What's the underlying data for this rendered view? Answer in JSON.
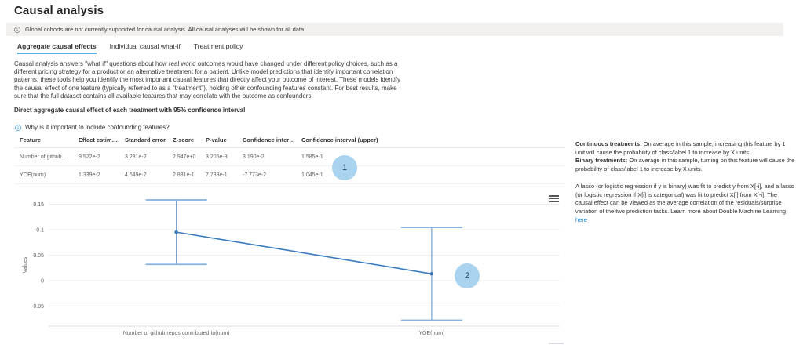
{
  "page": {
    "title": "Causal analysis"
  },
  "banner": {
    "icon": "info-icon",
    "text": "Global cohorts are not currently supported for causal analysis. All causal analyses will be shown for all data."
  },
  "tabs": [
    {
      "label": "Aggregate causal effects",
      "active": true
    },
    {
      "label": "Individual causal what-if",
      "active": false
    },
    {
      "label": "Treatment policy",
      "active": false
    }
  ],
  "description": "Causal analysis answers \"what if\" questions about how real world outcomes would have changed under different policy choices, such as a different pricing strategy for a product or an alternative treatment for a patient. Unlike model predictions that identify important correlation patterns, these tools help you identify the most important causal features that directly affect your outcome of interest. These models identify the causal effect of one feature (typically referred to as a \"treatment\"), holding other confounding features constant. For best results, make sure that the full dataset contains all available features that may correlate with the outcome as confounders.",
  "subtitle": "Direct aggregate causal effect of each treatment with 95% confidence interval",
  "confounding_link": "Why is it important to include confounding features?",
  "table": {
    "columns": [
      "Feature",
      "Effect estimate",
      "Standard error",
      "Z-score",
      "P-value",
      "Confidence interv...",
      "Confidence interval (upper)"
    ],
    "rows": [
      [
        "Number of github ...",
        "9.522e-2",
        "3.231e-2",
        "2.947e+0",
        "3.205e-3",
        "3.190e-2",
        "1.585e-1"
      ],
      [
        "YOE(num)",
        "1.339e-2",
        "4.649e-2",
        "2.881e-1",
        "7.733e-1",
        "-7.773e-2",
        "1.045e-1"
      ]
    ]
  },
  "callouts": [
    {
      "label": "1"
    },
    {
      "label": "2"
    }
  ],
  "chart_data": {
    "type": "scatter",
    "title": "",
    "categories": [
      "Number of github repos contributed to(num)",
      "YOE(num)"
    ],
    "values": [
      0.09522,
      0.01339
    ],
    "error_low": [
      0.0319,
      -0.07773
    ],
    "error_high": [
      0.1585,
      0.1045
    ],
    "ylabel": "Values",
    "xlabel": "",
    "yticks": [
      0.15,
      0.1,
      0.05,
      0,
      -0.05
    ],
    "ylim": [
      -0.09,
      0.17
    ],
    "grid": true,
    "legend": "none",
    "menu_icon": "hamburger-menu-icon"
  },
  "colors": {
    "line": "#3a7cbf",
    "error_bar": "#6f9fd2",
    "error_cap": "#85b1dc",
    "accent": "#0078d4",
    "tab_underline": "#58ade3",
    "callout_bg": "#a9d3ee",
    "banner_bg": "#f2f1f0"
  },
  "side_panel": {
    "continuous_bold": "Continuous treatments:",
    "continuous_text": " On average in this sample, increasing this feature by 1 unit will cause the probability of class/label 1 to increase by X units.",
    "binary_bold": "Binary treatments:",
    "binary_text": " On average in this sample, turning on this feature will cause the probability of class/label 1 to increase by X units.",
    "lasso_text": "A lasso (or logistic regression if y is binary) was fit to predict y from X[-i], and a lasso (or logistic regression if X[i] is categorical) was fit to predict X[i] from X[-i]. The causal effect can be viewed as the average correlation of the residuals/surprise variation of the two prediction tasks. Learn more about Double Machine Learning ",
    "lasso_link": "here"
  }
}
